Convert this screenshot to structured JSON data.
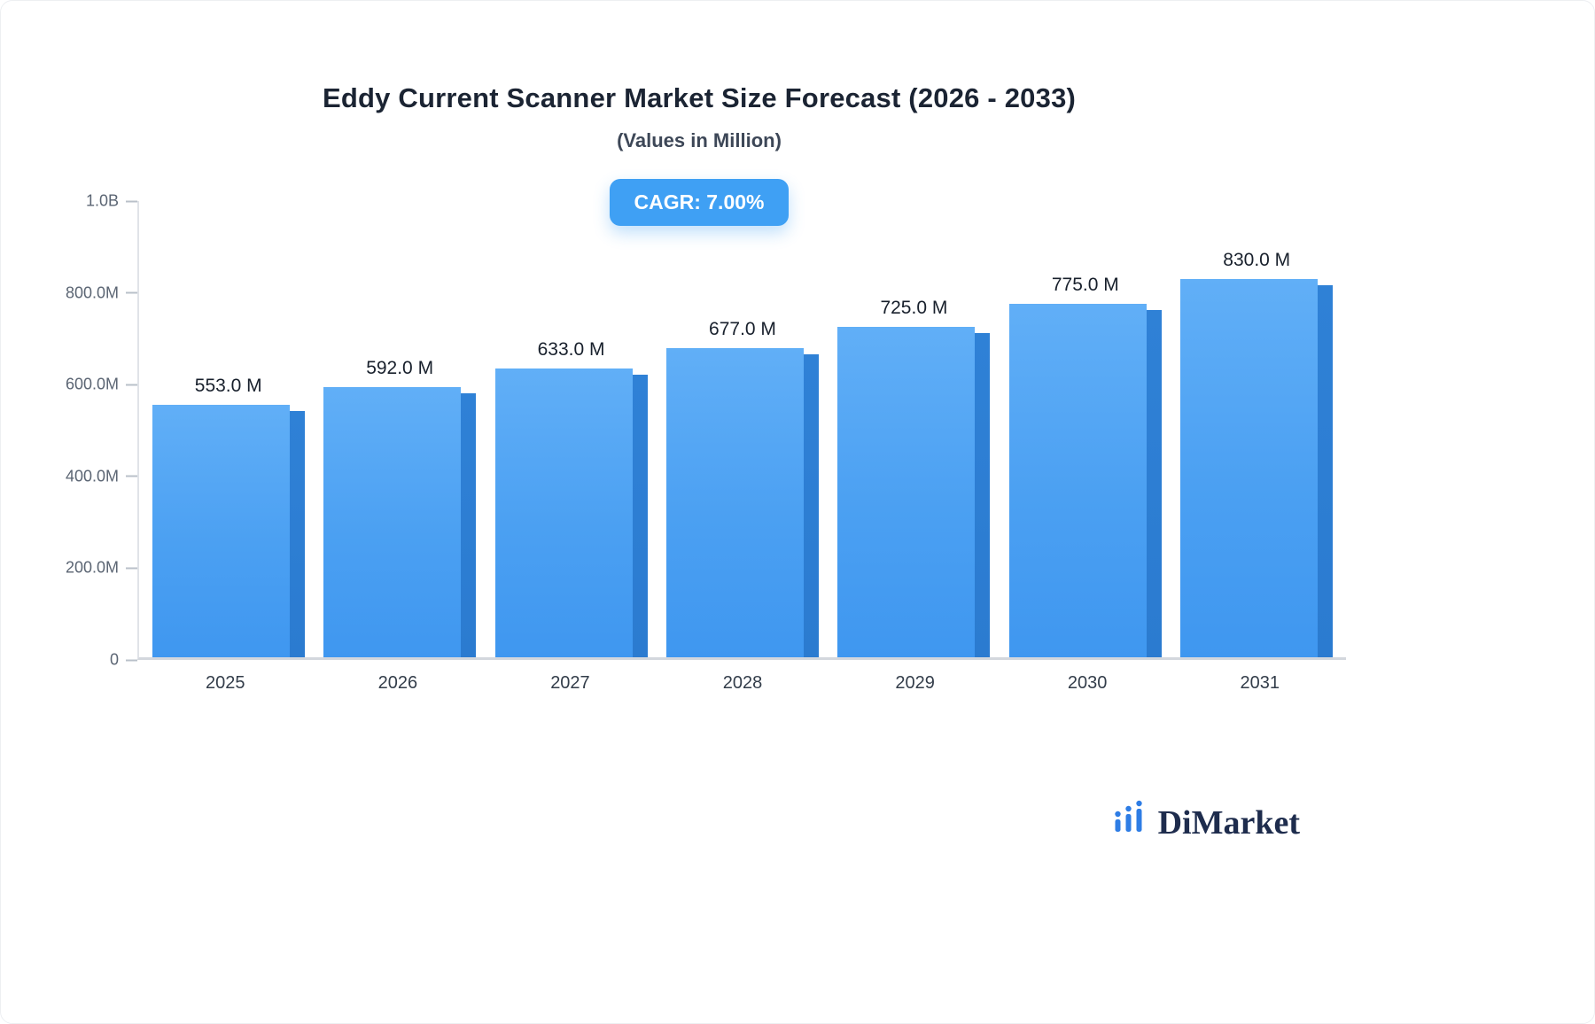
{
  "title": "Eddy Current Scanner Market Size Forecast (2026 - 2033)",
  "subtitle": "(Values in Million)",
  "badge": {
    "label": "CAGR: 7.00%"
  },
  "logo": {
    "text": "DiMarket"
  },
  "colors": {
    "bar_main": "#4ba0f2",
    "bar_side": "#2d7ed3",
    "badge_bg": "#3fa0f4",
    "logo_icon": "#2e7de5"
  },
  "chart_data": {
    "type": "bar",
    "title": "Eddy Current Scanner Market Size Forecast (2026 - 2033)",
    "subtitle": "(Values in Million)",
    "unit": "Million USD",
    "categories": [
      "2025",
      "2026",
      "2027",
      "2028",
      "2029",
      "2030",
      "2031"
    ],
    "values": [
      553,
      592,
      633,
      677,
      725,
      775,
      830
    ],
    "value_labels": [
      "553.0 M",
      "592.0 M",
      "633.0 M",
      "677.0 M",
      "725.0 M",
      "775.0 M",
      "830.0 M"
    ],
    "xlabel": "",
    "ylabel": "",
    "ylim": [
      0,
      1000
    ],
    "grid": false,
    "legend": "none",
    "annotation": "CAGR: 7.00%",
    "yticks": [
      {
        "value": 0,
        "label": "0"
      },
      {
        "value": 200,
        "label": "200.0M"
      },
      {
        "value": 400,
        "label": "400.0M"
      },
      {
        "value": 600,
        "label": "600.0M"
      },
      {
        "value": 800,
        "label": "800.0M"
      },
      {
        "value": 1000,
        "label": "1.0B"
      }
    ]
  }
}
